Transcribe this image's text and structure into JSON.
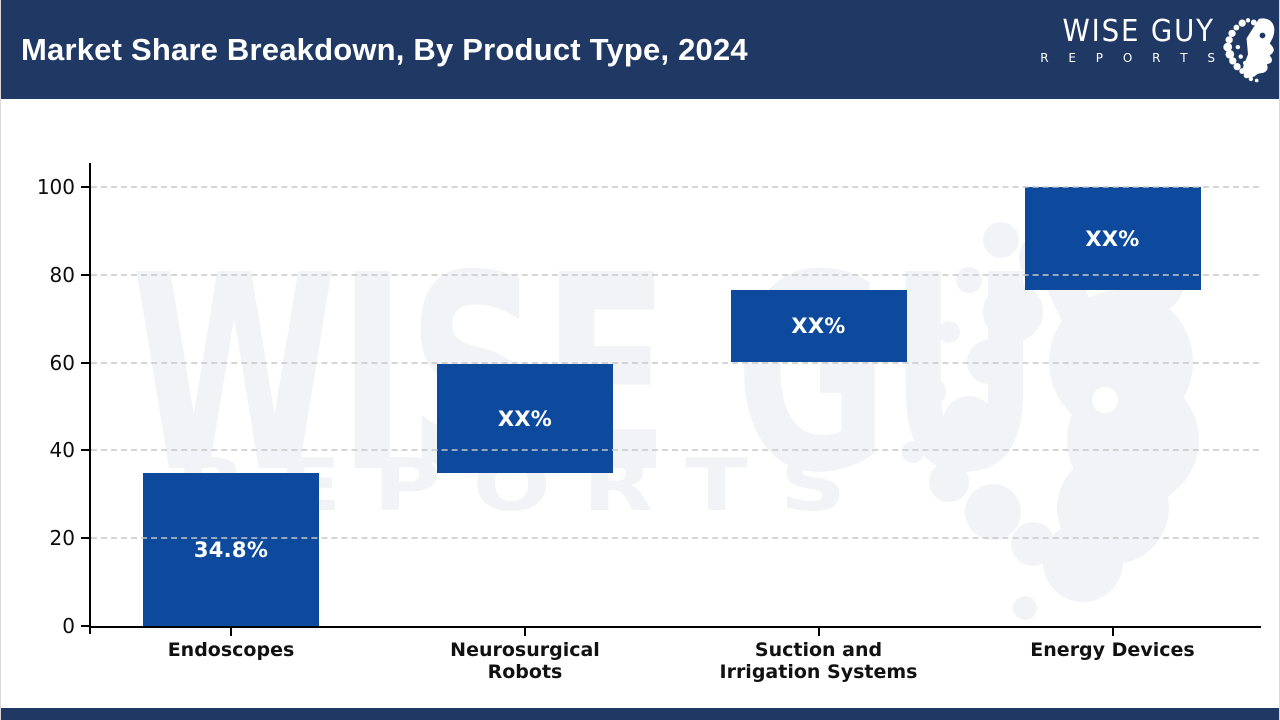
{
  "header": {
    "title": "Market Share Breakdown, By Product Type, 2024",
    "logo": {
      "name": "WISE GUY",
      "sub": "R E P O R T S"
    }
  },
  "watermark": {
    "big": "WISE GUY",
    "sub": "R E P O R T S"
  },
  "chart_data": {
    "type": "bar",
    "subtype": "waterfall",
    "title": "Market Share Breakdown, By Product Type, 2024",
    "categories": [
      [
        "Endoscopes"
      ],
      [
        "Neurosurgical",
        "Robots"
      ],
      [
        "Suction and",
        "Irrigation Systems"
      ],
      [
        "Energy Devices"
      ]
    ],
    "segments": [
      {
        "name": "Endoscopes",
        "start": 0,
        "end": 34.8,
        "label": "34.8%"
      },
      {
        "name": "Neurosurgical Robots",
        "start": 34.8,
        "end": 59.6,
        "label": "XX%"
      },
      {
        "name": "Suction and Irrigation Systems",
        "start": 60.1,
        "end": 76.5,
        "label": "XX%"
      },
      {
        "name": "Energy Devices",
        "start": 76.5,
        "end": 100,
        "label": "XX%"
      }
    ],
    "yticks": [
      0,
      20,
      40,
      60,
      80,
      100
    ],
    "ylim": [
      0,
      105
    ],
    "xlabel": "",
    "ylabel": "",
    "grid": "horizontal-dashed",
    "bar_color": "#0d4a9d",
    "bar_label_color": "#ffffff"
  },
  "colors": {
    "header_bg": "#1f3864",
    "footer_bg": "#1f3864",
    "bar": "#0d4a9d",
    "grid": "#c7c7c7",
    "axis": "#000000",
    "watermark": "#f2f3f6",
    "frame": "#d9d9d9"
  }
}
